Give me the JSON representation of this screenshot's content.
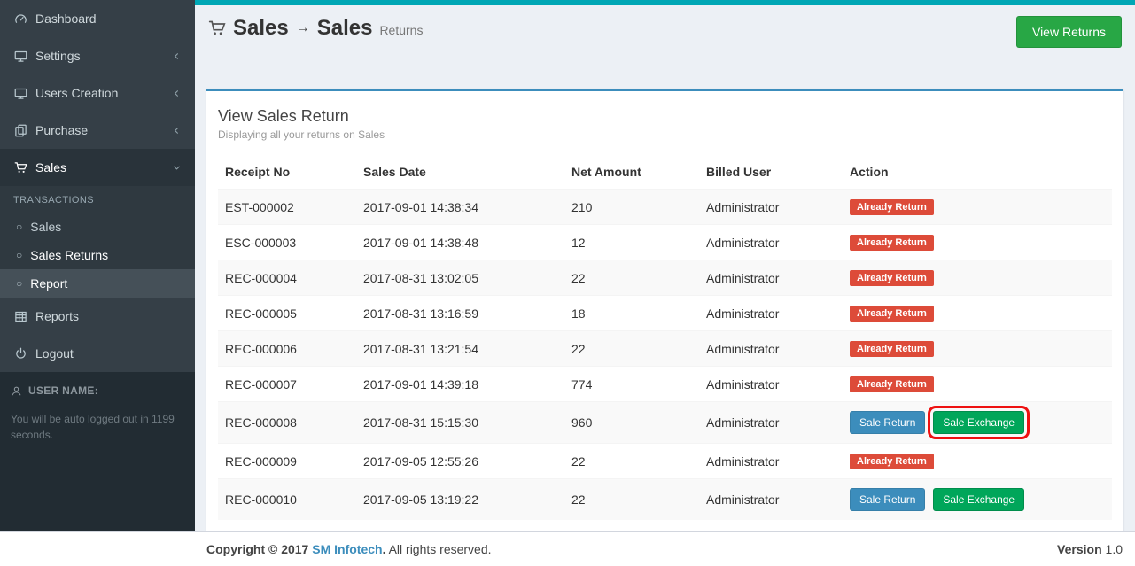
{
  "colors": {
    "teal_bar": "#00a7b5",
    "sidebar_bg": "#353f47",
    "sidebar_active_bg": "#29333a",
    "submenu_bg": "#2f3940",
    "submenu_hover": "#455058",
    "user_panel_bg": "#222c33",
    "content_bg": "#ecf0f5",
    "card_accent": "#3c8dbc",
    "green": "#28a745",
    "green_dark": "#00a65a",
    "blue": "#3c8dbc",
    "red": "#dd4b39",
    "highlight": "#ee1111",
    "link": "#3c8dbc"
  },
  "icons": {
    "arrow": "→",
    "circle_bullet": "○"
  },
  "sidebar": {
    "items": [
      {
        "label": "Dashboard"
      },
      {
        "label": "Settings"
      },
      {
        "label": "Users Creation"
      },
      {
        "label": "Purchase"
      },
      {
        "label": "Sales"
      }
    ],
    "submenu_header": "TRANSACTIONS",
    "submenu": [
      {
        "label": "Sales"
      },
      {
        "label": "Sales Returns"
      },
      {
        "label": "Report"
      }
    ],
    "items_bottom": [
      {
        "label": "Reports"
      },
      {
        "label": "Logout"
      }
    ],
    "user_panel": {
      "username_label": "USER NAME:",
      "logout_notice": "You will be auto logged out in 1199 seconds."
    }
  },
  "header": {
    "breadcrumb": {
      "section": "Sales",
      "page": "Sales",
      "page_suffix": "Returns"
    },
    "view_returns_button": "View Returns"
  },
  "card": {
    "title": "View Sales Return",
    "subtitle": "Displaying all your returns on Sales"
  },
  "labels": {
    "already_return": "Already Return",
    "sale_return": "Sale Return",
    "sale_exchange": "Sale Exchange"
  },
  "table": {
    "columns": [
      "Receipt No",
      "Sales Date",
      "Net Amount",
      "Billed User",
      "Action"
    ],
    "rows": [
      {
        "receipt_no": "EST-000002",
        "sales_date": "2017-09-01 14:38:34",
        "net_amount": "210",
        "billed_user": "Administrator",
        "actions": [
          {
            "type": "already_return"
          }
        ]
      },
      {
        "receipt_no": "ESC-000003",
        "sales_date": "2017-09-01 14:38:48",
        "net_amount": "12",
        "billed_user": "Administrator",
        "actions": [
          {
            "type": "already_return"
          }
        ]
      },
      {
        "receipt_no": "REC-000004",
        "sales_date": "2017-08-31 13:02:05",
        "net_amount": "22",
        "billed_user": "Administrator",
        "actions": [
          {
            "type": "already_return"
          }
        ]
      },
      {
        "receipt_no": "REC-000005",
        "sales_date": "2017-08-31 13:16:59",
        "net_amount": "18",
        "billed_user": "Administrator",
        "actions": [
          {
            "type": "already_return"
          }
        ]
      },
      {
        "receipt_no": "REC-000006",
        "sales_date": "2017-08-31 13:21:54",
        "net_amount": "22",
        "billed_user": "Administrator",
        "actions": [
          {
            "type": "already_return"
          }
        ]
      },
      {
        "receipt_no": "REC-000007",
        "sales_date": "2017-09-01 14:39:18",
        "net_amount": "774",
        "billed_user": "Administrator",
        "actions": [
          {
            "type": "already_return"
          }
        ]
      },
      {
        "receipt_no": "REC-000008",
        "sales_date": "2017-08-31 15:15:30",
        "net_amount": "960",
        "billed_user": "Administrator",
        "actions": [
          {
            "type": "sale_return"
          },
          {
            "type": "sale_exchange",
            "highlighted": true
          }
        ]
      },
      {
        "receipt_no": "REC-000009",
        "sales_date": "2017-09-05 12:55:26",
        "net_amount": "22",
        "billed_user": "Administrator",
        "actions": [
          {
            "type": "already_return"
          }
        ]
      },
      {
        "receipt_no": "REC-000010",
        "sales_date": "2017-09-05 13:19:22",
        "net_amount": "22",
        "billed_user": "Administrator",
        "actions": [
          {
            "type": "sale_return"
          },
          {
            "type": "sale_exchange"
          }
        ]
      }
    ]
  },
  "footer": {
    "copyright_prefix": "Copyright © 2017 ",
    "company": "SM Infotech",
    "copyright_dot": ".",
    "copyright_suffix": " All rights reserved.",
    "version_label": "Version",
    "version_value": "1.0"
  }
}
